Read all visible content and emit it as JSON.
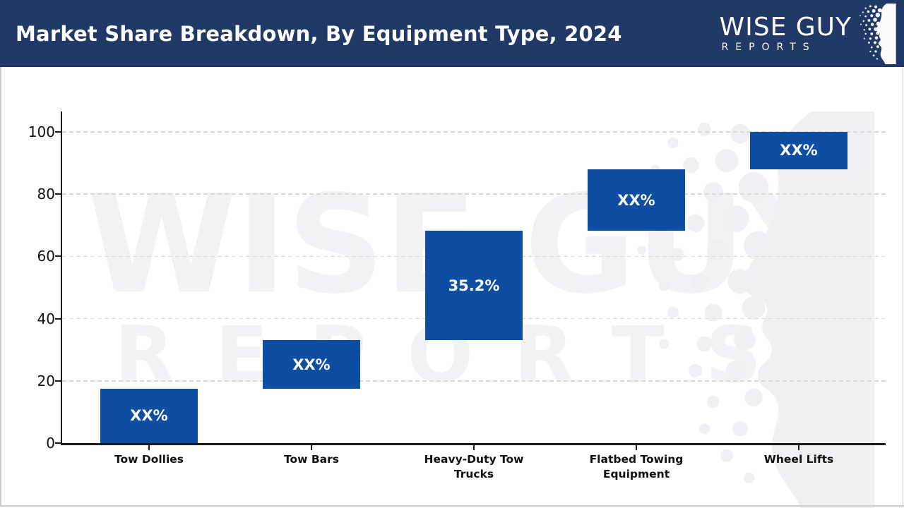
{
  "header": {
    "title": "Market Share Breakdown, By Equipment Type, 2024",
    "logo": {
      "name": "WISE GUY",
      "sub": "REPORTS"
    }
  },
  "watermark": {
    "name": "WISE GUY",
    "sub": "REPORTS"
  },
  "chart_data": {
    "type": "bar",
    "subtype": "waterfall-floating-bars",
    "title": "Market Share Breakdown, By Equipment Type, 2024",
    "categories": [
      "Tow Dollies",
      "Tow Bars",
      "Heavy-Duty Tow Trucks",
      "Flatbed Towing Equipment",
      "Wheel Lifts"
    ],
    "segments": [
      {
        "category": "Tow Dollies",
        "start": 0,
        "end": 17.5,
        "size": 17.5,
        "bar_label": "XX%"
      },
      {
        "category": "Tow Bars",
        "start": 17.5,
        "end": 33.0,
        "size": 15.5,
        "bar_label": "XX%"
      },
      {
        "category": "Heavy-Duty Tow Trucks",
        "start": 33.0,
        "end": 68.2,
        "size": 35.2,
        "bar_label": "35.2%"
      },
      {
        "category": "Flatbed Towing Equipment",
        "start": 68.2,
        "end": 88.0,
        "size": 19.8,
        "bar_label": "XX%"
      },
      {
        "category": "Wheel Lifts",
        "start": 88.0,
        "end": 100.0,
        "size": 12.0,
        "bar_label": "XX%"
      }
    ],
    "xlabel": "",
    "ylabel": "",
    "yticks": [
      0,
      20,
      40,
      60,
      80,
      100
    ],
    "ylim": [
      0,
      106
    ],
    "grid": "horizontal-dashed",
    "legend": "none",
    "bar_color": "#0d4da2",
    "bar_label_color": "#ffffff"
  },
  "colors": {
    "header_bg": "#213966",
    "bar": "#0d4da2",
    "axis": "#1a1a1a",
    "grid": "#d9d9d9",
    "watermark": "#f1f2f5",
    "border": "#cccccc",
    "title_text": "#ffffff"
  }
}
